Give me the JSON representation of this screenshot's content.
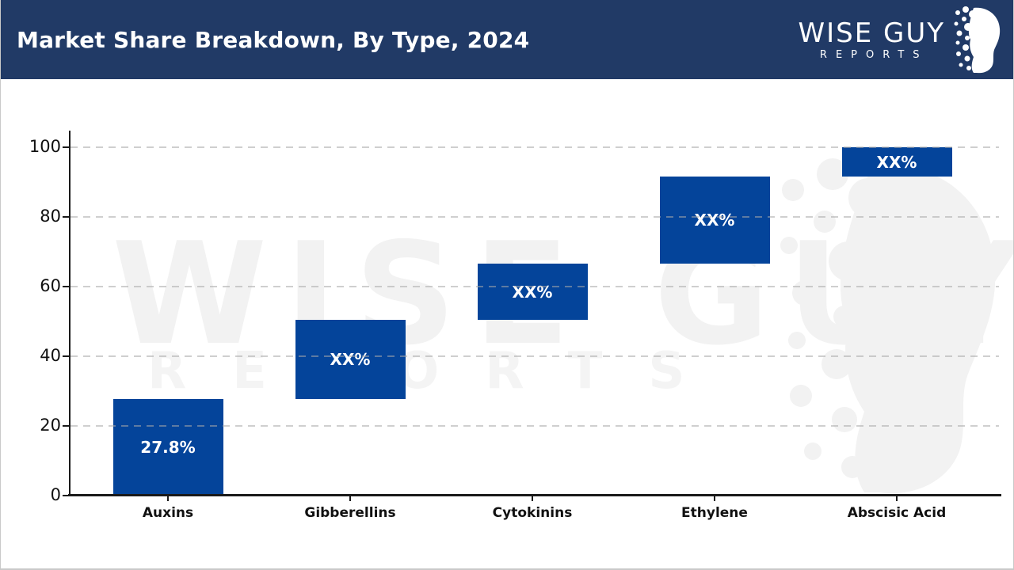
{
  "header": {
    "title": "Market Share Breakdown, By Type, 2024",
    "brand": {
      "line1": "WISE GUY",
      "line2": "REPORTS"
    }
  },
  "watermark": {
    "line1": "WISE GUY",
    "line2": "REPORTS"
  },
  "chart_data": {
    "type": "bar",
    "subtype": "waterfall",
    "title": "Market Share Breakdown, By Type, 2024",
    "categories": [
      "Auxins",
      "Gibberellins",
      "Cytokinins",
      "Ethylene",
      "Abscisic Acid"
    ],
    "series": [
      {
        "name": "Market Share",
        "segments": [
          {
            "category": "Auxins",
            "start": 0,
            "end": 27.8,
            "value": 27.8,
            "label": "27.8%"
          },
          {
            "category": "Gibberellins",
            "start": 27.8,
            "end": 50.5,
            "value": 22.7,
            "label": "XX%"
          },
          {
            "category": "Cytokinins",
            "start": 50.5,
            "end": 66.5,
            "value": 16.0,
            "label": "XX%"
          },
          {
            "category": "Ethylene",
            "start": 66.5,
            "end": 91.5,
            "value": 25.0,
            "label": "XX%"
          },
          {
            "category": "Abscisic Acid",
            "start": 91.5,
            "end": 100,
            "value": 8.5,
            "label": "XX%"
          }
        ]
      }
    ],
    "xlabel": "",
    "ylabel": "",
    "ylim": [
      0,
      105
    ],
    "yticks": [
      0,
      20,
      40,
      60,
      80,
      100
    ],
    "grid": "dashed horizontal",
    "legend": "none",
    "colors": {
      "bar": "#04449A",
      "header_bg": "#213A66",
      "axis": "#1A1A1A",
      "gridline": "#D9D9D9",
      "bar_label_text": "#FFFFFF",
      "watermark": "#F2F2F2"
    }
  }
}
